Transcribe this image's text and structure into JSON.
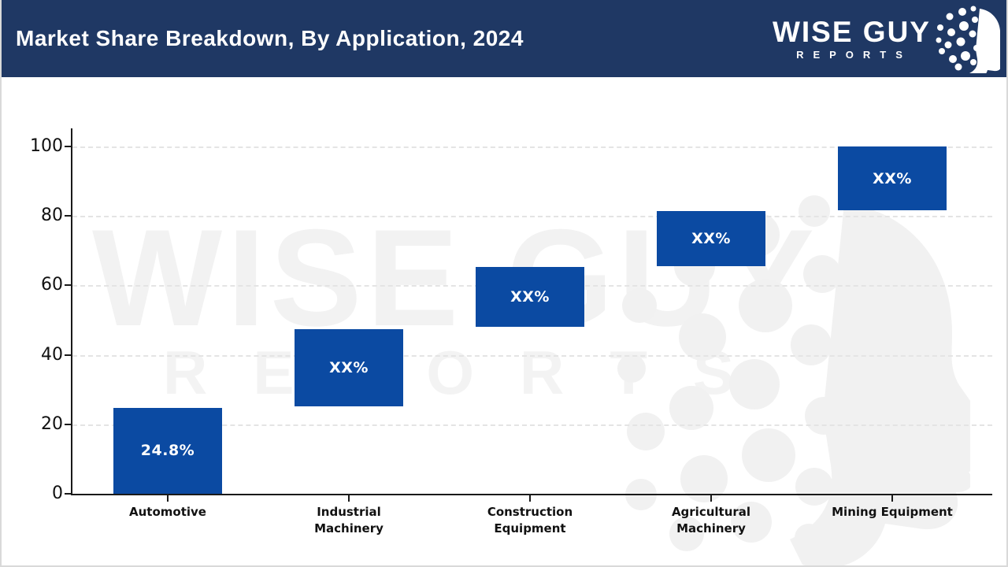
{
  "header": {
    "title": "Market Share Breakdown, By Application, 2024",
    "bg_color": "#1f3864",
    "logo": {
      "line1": "WISE GUY",
      "line2": "REPORTS"
    }
  },
  "watermark": {
    "line1": "WISE GUY",
    "line2": "REPORTS"
  },
  "chart_data": {
    "type": "bar",
    "subtype": "waterfall",
    "title": "Market Share Breakdown, By Application, 2024",
    "xlabel": "",
    "ylabel": "",
    "categories": [
      "Automotive",
      "Industrial\nMachinery",
      "Construction\nEquipment",
      "Agricultural\nMachinery",
      "Mining Equipment"
    ],
    "segments": [
      {
        "start": 0,
        "end": 24.8,
        "label": "24.8%"
      },
      {
        "start": 25.2,
        "end": 47.5,
        "label": "XX%"
      },
      {
        "start": 48.0,
        "end": 65.3,
        "label": "XX%"
      },
      {
        "start": 65.6,
        "end": 81.3,
        "label": "XX%"
      },
      {
        "start": 81.6,
        "end": 100,
        "label": "XX%"
      }
    ],
    "yticks": [
      0,
      20,
      40,
      60,
      80,
      100
    ],
    "ylim": [
      0,
      105
    ],
    "grid": "horizontal-dashed",
    "legend": "none",
    "bar_color": "#0b4aa2",
    "bar_label_color": "#ffffff"
  }
}
